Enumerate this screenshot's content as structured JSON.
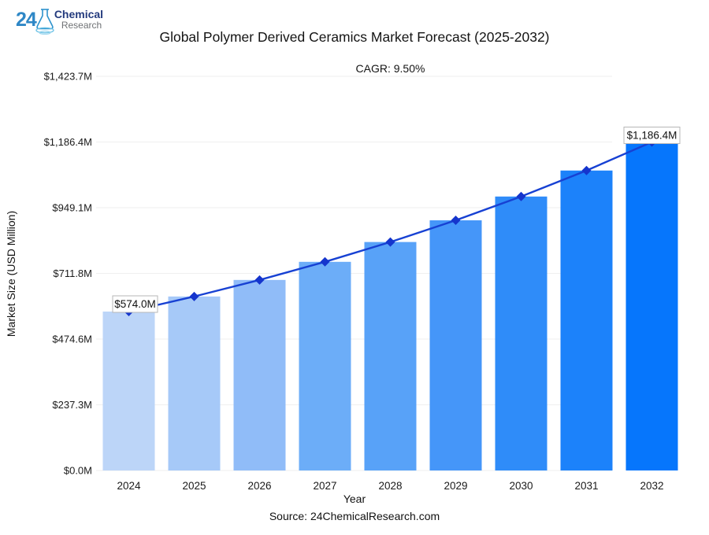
{
  "logo": {
    "number": "24",
    "line1": "Chemical",
    "line2": "Research"
  },
  "header": {
    "title": "Global Polymer Derived Ceramics Market Forecast (2025-2032)",
    "subtitle": "CAGR: 9.50%"
  },
  "footer": {
    "source": "Source: 24ChemicalResearch.com"
  },
  "chart_data": {
    "type": "bar",
    "overlay": "line",
    "title": "Global Polymer Derived Ceramics Market Forecast (2025-2032)",
    "subtitle": "CAGR: 9.50%",
    "categories": [
      "2024",
      "2025",
      "2026",
      "2027",
      "2028",
      "2029",
      "2030",
      "2031",
      "2032"
    ],
    "series": [
      {
        "name": "Market Size",
        "type": "bar",
        "values": [
          574.0,
          628.5,
          688.2,
          753.6,
          825.2,
          903.6,
          989.5,
          1083.4,
          1186.4
        ]
      },
      {
        "name": "Trend",
        "type": "line",
        "values": [
          574.0,
          628.5,
          688.2,
          753.6,
          825.2,
          903.6,
          989.5,
          1083.4,
          1186.4
        ]
      }
    ],
    "xlabel": "Year",
    "ylabel": "Market Size (USD Million)",
    "ylim": [
      0,
      1423.7
    ],
    "yticks": [
      0.0,
      237.3,
      474.6,
      711.8,
      949.1,
      1186.4,
      1423.7
    ],
    "ytick_labels": [
      "$0.0M",
      "$237.3M",
      "$474.6M",
      "$711.8M",
      "$949.1M",
      "$1,186.4M",
      "$1,423.7M"
    ],
    "grid": "horizontal",
    "legend_position": "none",
    "annotations": [
      {
        "index": 0,
        "label": "$574.0M"
      },
      {
        "index": 8,
        "label": "$1,186.4M"
      }
    ],
    "colors": {
      "bars": [
        "#bcd5f8",
        "#a6c9f8",
        "#90bcf8",
        "#6cadf8",
        "#58a2f8",
        "#4596f9",
        "#2f8cf9",
        "#1c82fa",
        "#0676fc"
      ],
      "line": "#1741d3",
      "marker": "#1535cd",
      "grid": "#efefef",
      "tick_text": "#1a1a1a",
      "annotation_border": "#b7b7b7",
      "annotation_bg": "#ffffff"
    }
  }
}
